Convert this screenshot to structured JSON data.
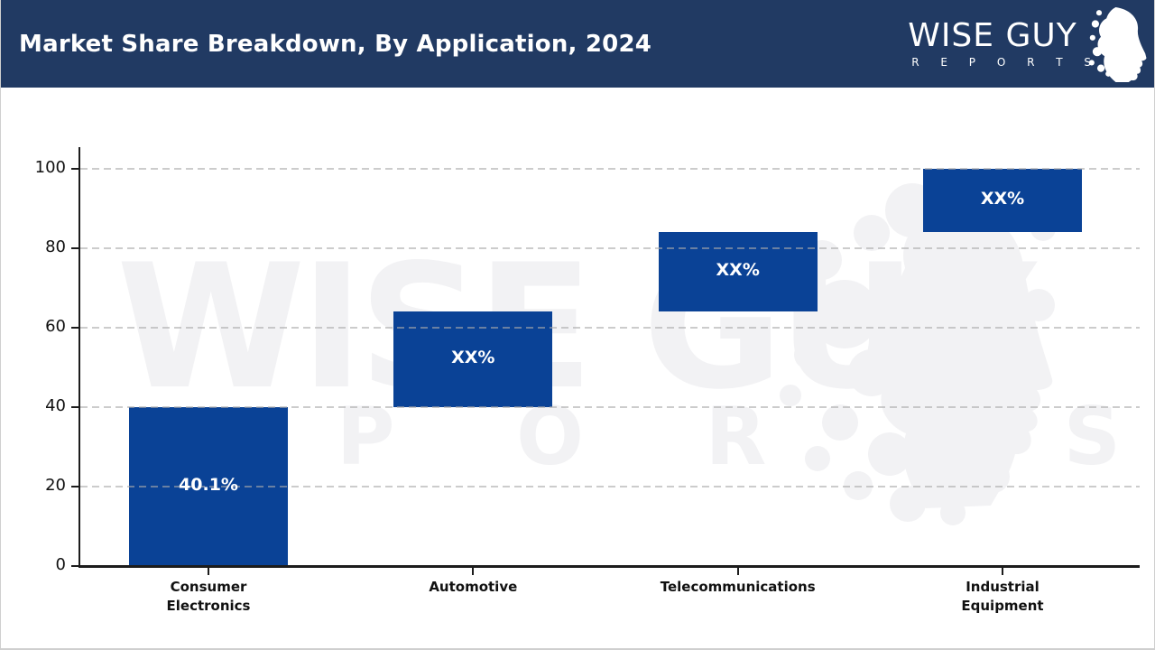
{
  "header": {
    "title": "Market Share Breakdown, By Application, 2024",
    "logo": {
      "line1": "WISE GUY",
      "line2": "R E P O R T S"
    }
  },
  "watermark": {
    "line1": "WISE GUY",
    "line2": "P O R T S"
  },
  "colors": {
    "header_bg": "#213a63",
    "bar": "#0a4296",
    "bar_label": "#ffffff",
    "axis": "#1c1c1c",
    "grid": "#aaaaaa",
    "watermark": "#f2f2f4"
  },
  "chart_data": {
    "type": "bar",
    "variant": "floating-segment-waterfall",
    "title": "Market Share Breakdown, By Application, 2024",
    "categories": [
      "Consumer\nElectronics",
      "Automotive",
      "Telecommunications",
      "Industrial\nEquipment"
    ],
    "bars": [
      {
        "category": "Consumer\nElectronics",
        "value_label": "40.1%",
        "start": 0,
        "end": 40.1
      },
      {
        "category": "Automotive",
        "value_label": "XX%",
        "start": 40.1,
        "end": 64.1
      },
      {
        "category": "Telecommunications",
        "value_label": "XX%",
        "start": 64.1,
        "end": 84.1
      },
      {
        "category": "Industrial\nEquipment",
        "value_label": "XX%",
        "start": 84.1,
        "end": 100.1
      }
    ],
    "xlabel": "",
    "ylabel": "",
    "ylim": [
      0,
      100
    ],
    "yticks": [
      0,
      20,
      40,
      60,
      80,
      100
    ],
    "grid": "horizontal-dashed",
    "legend": "none"
  }
}
